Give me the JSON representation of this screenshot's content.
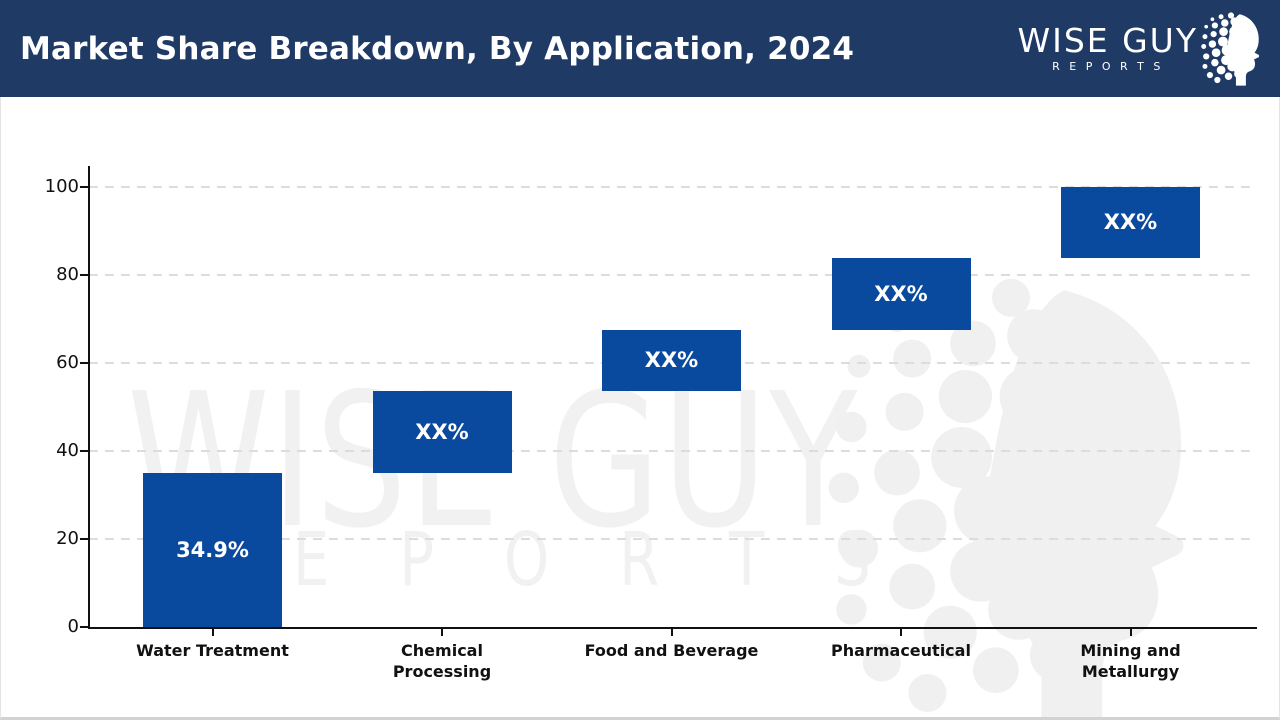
{
  "header": {
    "title": "Market Share Breakdown, By Application, 2024",
    "logo_line1": "WISE GUY",
    "logo_line2": "R E P O R T S",
    "bg_color": "#203a66"
  },
  "watermark": {
    "line1": "WISE GUY",
    "line2": "R E P O R T S"
  },
  "chart_data": {
    "type": "bar",
    "variant": "waterfall",
    "title": "Market Share Breakdown, By Application, 2024",
    "categories": [
      "Water Treatment",
      "Chemical Processing",
      "Food and Beverage",
      "Pharmaceutical",
      "Mining and Metallurgy"
    ],
    "category_display": [
      "Water Treatment",
      "Chemical\nProcessing",
      "Food and Beverage",
      "Pharmaceutical",
      "Mining and\nMetallurgy"
    ],
    "cumulative": [
      0,
      34.9,
      53.6,
      67.6,
      83.9,
      100
    ],
    "values": [
      34.9,
      18.7,
      14.0,
      16.3,
      16.1
    ],
    "bar_labels": [
      "34.9%",
      "XX%",
      "XX%",
      "XX%",
      "XX%"
    ],
    "yticks": [
      0,
      20,
      40,
      60,
      80,
      100
    ],
    "ylim": [
      0,
      105
    ],
    "xlabel": "",
    "ylabel": "",
    "grid": "horizontal-dashed",
    "legend": false,
    "bar_color": "#0a4a9e",
    "bar_label_color": "#ffffff",
    "axis_color": "#111111",
    "grid_color": "#dcdcdc",
    "tick_label_color": "#111111"
  }
}
